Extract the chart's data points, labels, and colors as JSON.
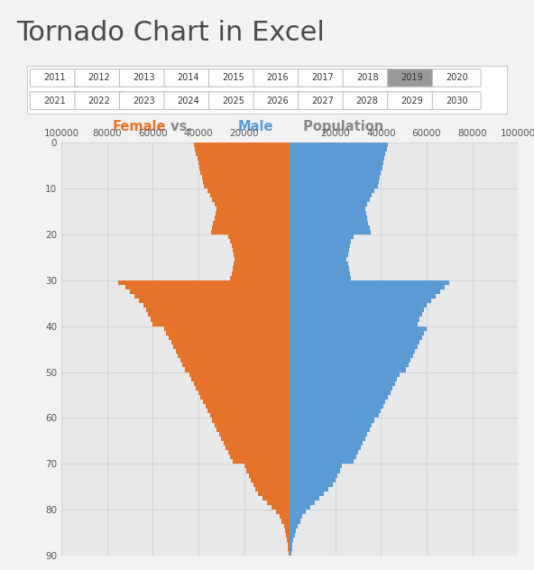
{
  "title": "Tornado Chart in Excel",
  "title_bg": "#F5C200",
  "subtitle_female": "Female",
  "subtitle_vs": " vs. ",
  "subtitle_male": "Male",
  "subtitle_pop": " Population",
  "female_color": "#E5732A",
  "male_color": "#5B9BD5",
  "ages": [
    0,
    1,
    2,
    3,
    4,
    5,
    6,
    7,
    8,
    9,
    10,
    11,
    12,
    13,
    14,
    15,
    16,
    17,
    18,
    19,
    20,
    21,
    22,
    23,
    24,
    25,
    26,
    27,
    28,
    29,
    30,
    31,
    32,
    33,
    34,
    35,
    36,
    37,
    38,
    39,
    40,
    41,
    42,
    43,
    44,
    45,
    46,
    47,
    48,
    49,
    50,
    51,
    52,
    53,
    54,
    55,
    56,
    57,
    58,
    59,
    60,
    61,
    62,
    63,
    64,
    65,
    66,
    67,
    68,
    69,
    70,
    71,
    72,
    73,
    74,
    75,
    76,
    77,
    78,
    79,
    80,
    81,
    82,
    83,
    84,
    85,
    86,
    87,
    88,
    89,
    90
  ],
  "female": [
    42000,
    41500,
    41000,
    40500,
    40000,
    39500,
    39000,
    38500,
    38000,
    37500,
    36000,
    35000,
    34000,
    33000,
    32000,
    32500,
    33000,
    33500,
    34000,
    34500,
    27000,
    26000,
    25500,
    25000,
    24500,
    24000,
    24500,
    25000,
    25500,
    26000,
    75000,
    72000,
    70000,
    68000,
    66000,
    64000,
    63000,
    62000,
    61000,
    60000,
    55000,
    54000,
    53000,
    52000,
    51000,
    50000,
    49000,
    48000,
    47000,
    46000,
    44000,
    43000,
    42000,
    41000,
    40000,
    39000,
    38000,
    37000,
    36000,
    35000,
    34000,
    33000,
    32000,
    31000,
    30000,
    29000,
    28000,
    27000,
    26000,
    25000,
    20000,
    19000,
    18000,
    17000,
    16000,
    15000,
    14000,
    12000,
    10000,
    8000,
    6000,
    4500,
    3500,
    2500,
    2000,
    1500,
    1200,
    900,
    700,
    500,
    100
  ],
  "male": [
    43000,
    42500,
    42000,
    41500,
    41000,
    40500,
    40000,
    39500,
    39000,
    38500,
    37000,
    36000,
    35000,
    34000,
    33000,
    33500,
    34000,
    34500,
    35000,
    35500,
    28000,
    27000,
    26500,
    26000,
    25500,
    25000,
    25500,
    26000,
    26500,
    27000,
    70000,
    68000,
    66000,
    64000,
    62000,
    60000,
    59000,
    58000,
    57000,
    56000,
    60000,
    59000,
    58000,
    57000,
    56000,
    55000,
    54000,
    53000,
    52000,
    51000,
    48000,
    47000,
    46000,
    45000,
    44000,
    43000,
    42000,
    41000,
    40000,
    39000,
    37000,
    36000,
    35000,
    34000,
    33000,
    32000,
    31000,
    30000,
    29000,
    28000,
    23000,
    22000,
    21000,
    20000,
    19000,
    17000,
    15000,
    13000,
    11000,
    9000,
    7000,
    5500,
    4500,
    3500,
    2800,
    2200,
    1700,
    1300,
    1000,
    700,
    200
  ],
  "year_buttons": [
    "2011",
    "2012",
    "2013",
    "2014",
    "2015",
    "2016",
    "2017",
    "2018",
    "2019",
    "2020",
    "2021",
    "2022",
    "2023",
    "2024",
    "2025",
    "2026",
    "2027",
    "2028",
    "2029",
    "2030"
  ],
  "selected_year": "2019",
  "bg_color": "#F2F2F2",
  "panel_bg": "#E8E8E8",
  "btn_bg": "#FFFFFF",
  "grid_color": "#CCCCCC",
  "axis_bg": "#E8E8E8",
  "selected_btn_color": "#999999"
}
